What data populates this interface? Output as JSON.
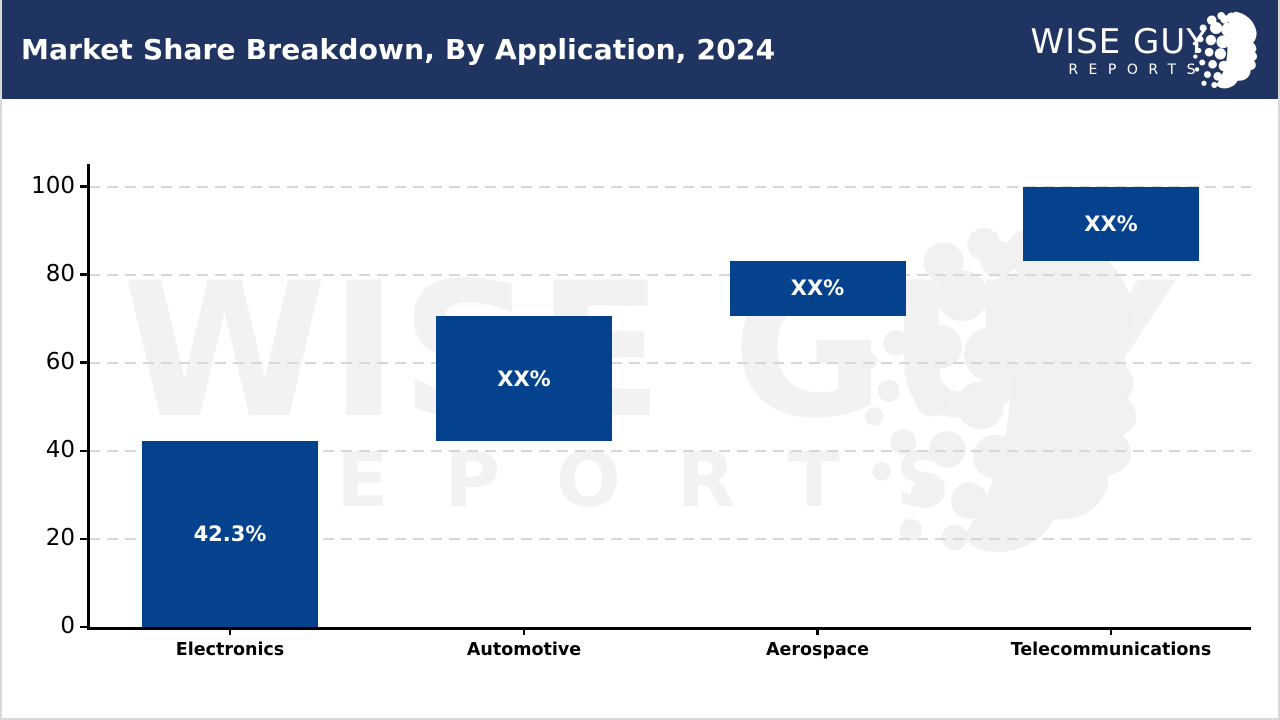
{
  "header": {
    "title": "Market Share Breakdown, By Application, 2024",
    "logo": {
      "line1": "WISE GUY",
      "line2": "REPORTS"
    }
  },
  "watermark": {
    "line1": "WISE GUY",
    "line2": "REPORTS"
  },
  "chart_data": {
    "type": "bar",
    "subtype": "waterfall-floating-bars",
    "title": "Market Share Breakdown, By Application, 2024",
    "categories": [
      "Electronics",
      "Automotive",
      "Aerospace",
      "Telecommunications"
    ],
    "bars": [
      {
        "category": "Electronics",
        "start": 0,
        "end": 42.3,
        "value": 42.3,
        "label": "42.3%"
      },
      {
        "category": "Automotive",
        "start": 42.3,
        "end": 70.5,
        "value": 28.2,
        "label": "XX%"
      },
      {
        "category": "Aerospace",
        "start": 70.5,
        "end": 83.2,
        "value": 12.7,
        "label": "XX%"
      },
      {
        "category": "Telecommunications",
        "start": 83.2,
        "end": 100,
        "value": 16.8,
        "label": "XX%"
      }
    ],
    "y_ticks": [
      0,
      20,
      40,
      60,
      80,
      100
    ],
    "ylim": [
      0,
      105
    ],
    "xlabel": "",
    "ylabel": "",
    "grid": "dashed-horizontal",
    "legend": "none",
    "bar_color": "#04428e"
  },
  "colors": {
    "header_bg": "#203462",
    "header_text": "#ffffff",
    "bar": "#04428e",
    "bar_label": "#ffffff",
    "axis": "#000000",
    "grid": "#d7d7d7",
    "frame_border": "#d9d9d9",
    "watermark": "#f2f2f2"
  }
}
